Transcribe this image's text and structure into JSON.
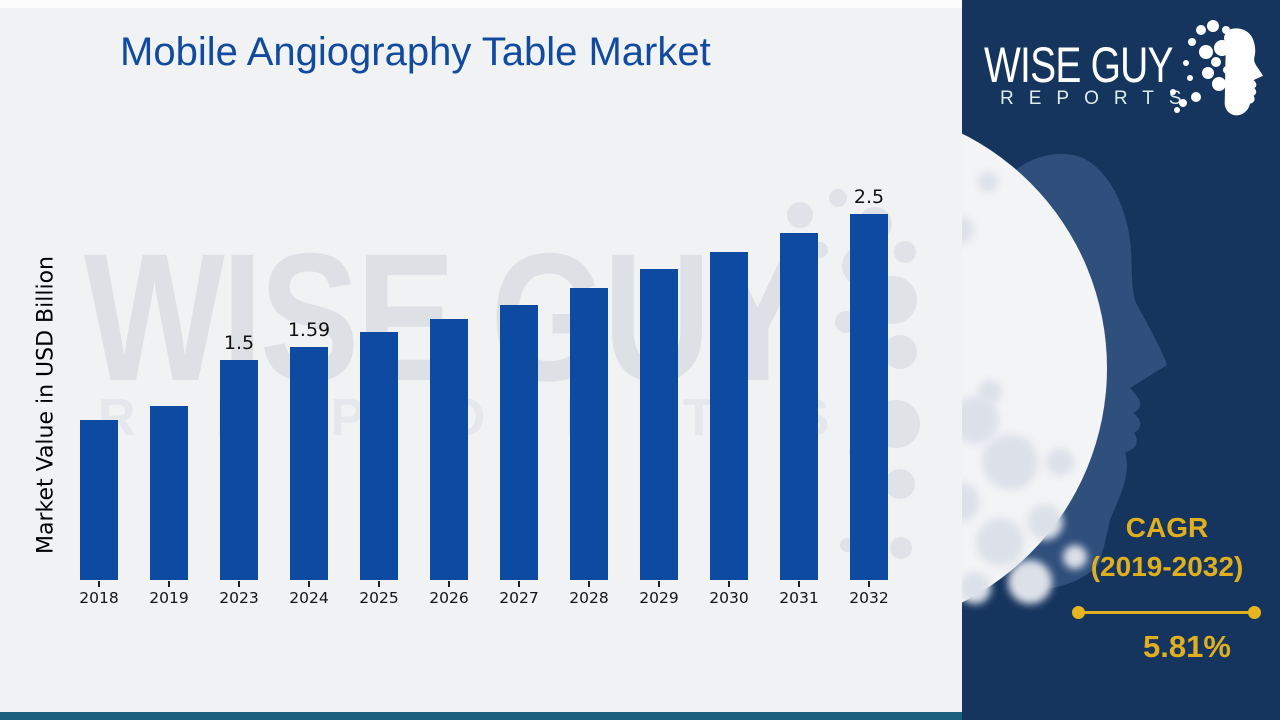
{
  "title": "Mobile Angiography Table Market",
  "y_axis_label": "Market Value in USD Billion",
  "watermark": {
    "line1": "WISE GUY",
    "line2": "REPORTS"
  },
  "logo": {
    "line1": "WISE GUY",
    "line2": "REPORTS"
  },
  "cagr": {
    "heading": "CAGR",
    "range": "(2019-2032)",
    "value": "5.81%"
  },
  "colors": {
    "bar": "#0d4ba3",
    "title_text": "#114a9e",
    "panel_navy": "#16355e",
    "accent_gold": "#dfaf1f",
    "bottom_strip_teal": "#19607f",
    "page_background": "#f1f2f3"
  },
  "chart_data": {
    "type": "bar",
    "title": "Mobile Angiography Table Market",
    "xlabel": "",
    "ylabel": "Market Value in USD Billion",
    "categories": [
      "2018",
      "2019",
      "2023",
      "2024",
      "2025",
      "2026",
      "2027",
      "2028",
      "2029",
      "2030",
      "2031",
      "2032"
    ],
    "values": [
      1.09,
      1.19,
      1.5,
      1.59,
      1.69,
      1.78,
      1.88,
      1.99,
      2.12,
      2.24,
      2.37,
      2.5
    ],
    "bar_labels": [
      "",
      "",
      "1.5",
      "1.59",
      "",
      "",
      "",
      "",
      "",
      "",
      "",
      "2.5"
    ],
    "series_name": "Market Value in USD Billion",
    "bar_color": "#0d4ba3",
    "grid": false,
    "legend": "none",
    "y_axis_ticks_visible": false,
    "cagr_annotation": "CAGR (2019-2032) 5.81%"
  }
}
